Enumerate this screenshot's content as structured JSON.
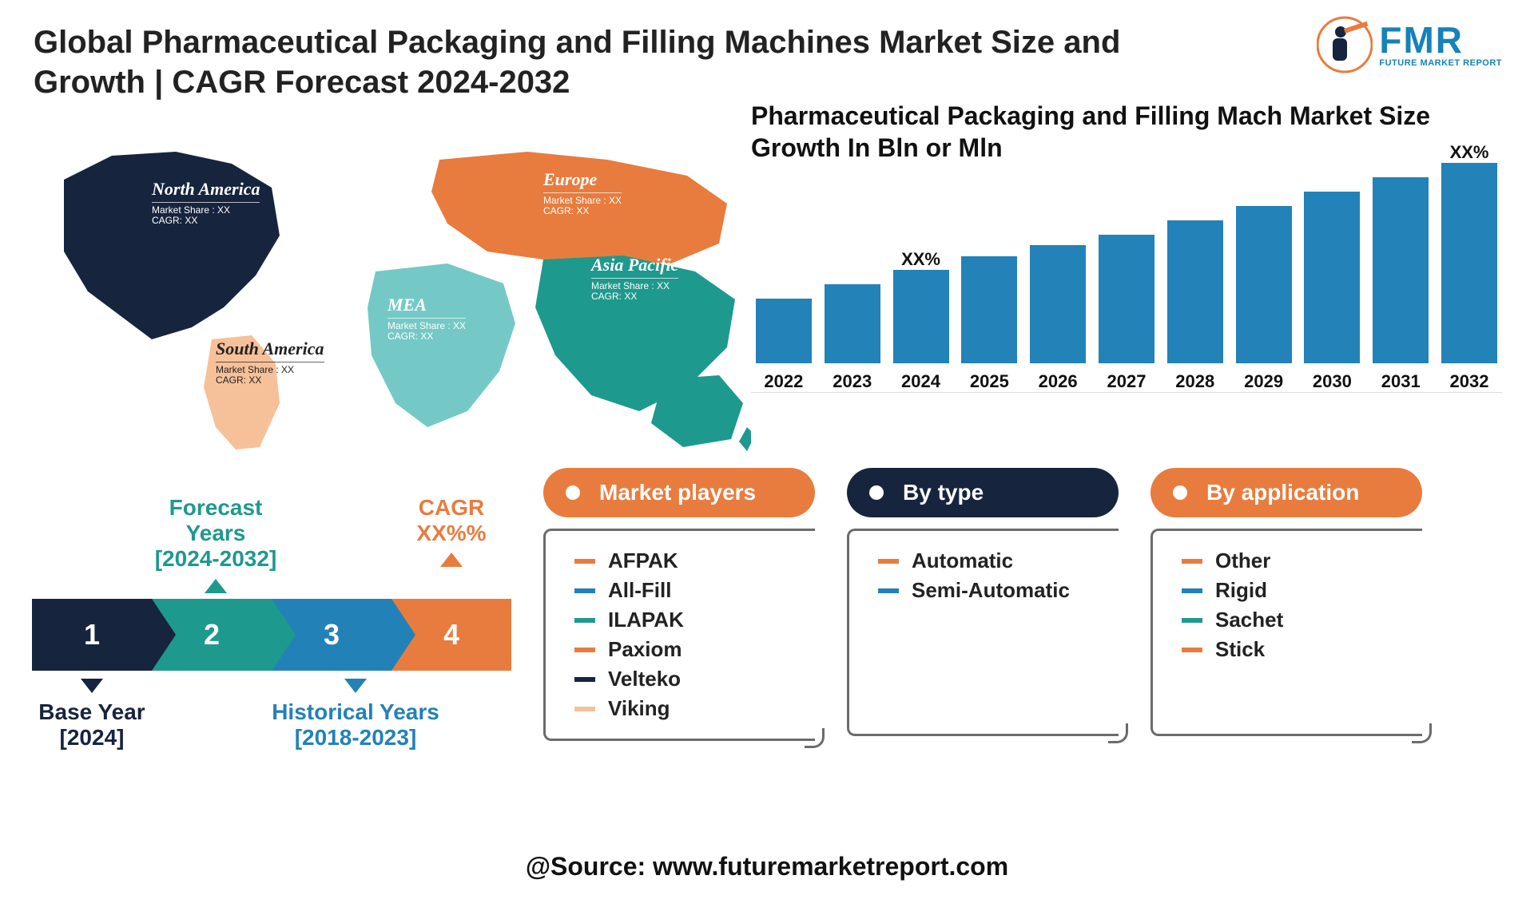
{
  "title": "Global Pharmaceutical Packaging and Filling Machines Market Size and Growth | CAGR Forecast 2024-2032",
  "logo": {
    "abbr": "FMR",
    "sub": "FUTURE MARKET REPORT"
  },
  "colors": {
    "navy": "#17243e",
    "teal": "#1e998e",
    "blue": "#2282b7",
    "orange": "#e87c3e",
    "ltteal": "#74c9c6",
    "peach": "#f6c099",
    "bar_color": "#2382b7",
    "grid": "#dddddd"
  },
  "map": {
    "regions": [
      {
        "id": "na",
        "name": "North America",
        "sub1": "Market Share : XX",
        "sub2": "CAGR: XX",
        "fill_key": "navy"
      },
      {
        "id": "sa",
        "name": "South America",
        "sub1": "Market Share : XX",
        "sub2": "CAGR: XX",
        "fill_key": "peach"
      },
      {
        "id": "eu",
        "name": "Europe",
        "sub1": "Market Share : XX",
        "sub2": "CAGR: XX",
        "fill_key": "orange"
      },
      {
        "id": "mea",
        "name": "MEA",
        "sub1": "Market Share : XX",
        "sub2": "CAGR: XX",
        "fill_key": "ltteal"
      },
      {
        "id": "ap",
        "name": "Asia Pacific",
        "sub1": "Market Share : XX",
        "sub2": "CAGR: XX",
        "fill_key": "teal"
      }
    ]
  },
  "chart": {
    "title": "Pharmaceutical Packaging and Filling Mach Market Size Growth In Bln or Mln",
    "type": "bar",
    "years": [
      "2022",
      "2023",
      "2024",
      "2025",
      "2026",
      "2027",
      "2028",
      "2029",
      "2030",
      "2031",
      "2032"
    ],
    "values": [
      90,
      110,
      130,
      150,
      165,
      180,
      200,
      220,
      240,
      260,
      280
    ],
    "ylim": [
      0,
      290
    ],
    "bar_color": "#2382b7",
    "annot": {
      "2024": "XX%",
      "2032": "XX%"
    }
  },
  "timeline": {
    "segments": [
      {
        "num": "1",
        "color_key": "navy"
      },
      {
        "num": "2",
        "color_key": "teal"
      },
      {
        "num": "3",
        "color_key": "blue"
      },
      {
        "num": "4",
        "color_key": "orange"
      }
    ],
    "labels": {
      "forecast": {
        "t1": "Forecast Years",
        "t2": "[2024-2032]",
        "color_key": "teal"
      },
      "cagr": {
        "t1": "CAGR",
        "t2": "XX%%",
        "color_key": "orange"
      },
      "base": {
        "t1": "Base Year",
        "t2": "[2024]",
        "color_key": "navy"
      },
      "hist": {
        "t1": "Historical Years",
        "t2": "[2018-2023]",
        "color_key": "blue"
      }
    }
  },
  "pills": {
    "players": {
      "title": "Market players",
      "header_color_key": "orange",
      "items": [
        {
          "label": "AFPAK",
          "dash_key": "orange"
        },
        {
          "label": "All-Fill",
          "dash_key": "blue"
        },
        {
          "label": "ILAPAK",
          "dash_key": "teal"
        },
        {
          "label": "Paxiom",
          "dash_key": "orange"
        },
        {
          "label": "Velteko",
          "dash_key": "navy"
        },
        {
          "label": "Viking",
          "dash_key": "peach"
        }
      ]
    },
    "bytype": {
      "title": "By type",
      "header_color_key": "navy",
      "items": [
        {
          "label": "Automatic",
          "dash_key": "orange"
        },
        {
          "label": "Semi-Automatic",
          "dash_key": "blue"
        }
      ]
    },
    "byapp": {
      "title": "By application",
      "header_color_key": "orange",
      "items": [
        {
          "label": "Other",
          "dash_key": "orange"
        },
        {
          "label": "Rigid",
          "dash_key": "blue"
        },
        {
          "label": "Sachet",
          "dash_key": "teal"
        },
        {
          "label": "Stick",
          "dash_key": "orange"
        }
      ]
    }
  },
  "source": "@Source: www.futuremarketreport.com"
}
